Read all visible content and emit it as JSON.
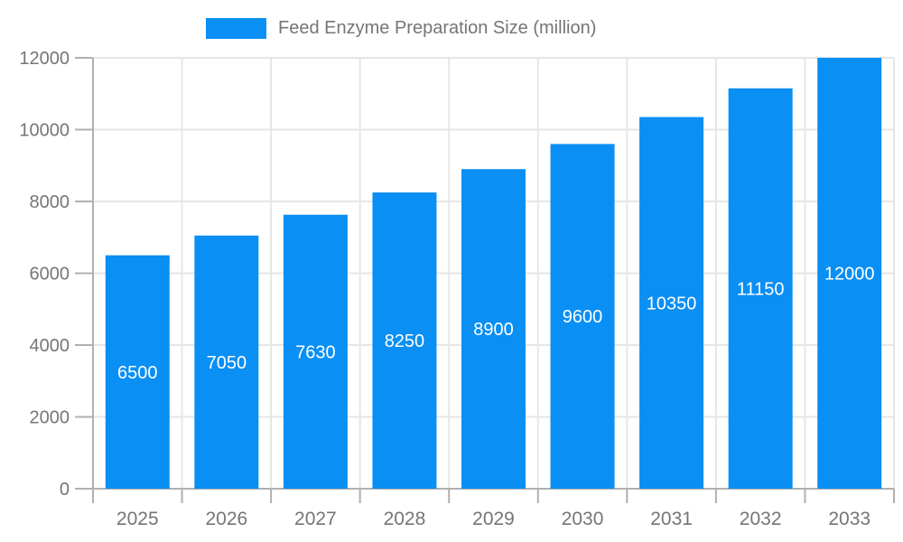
{
  "legend": {
    "swatch_color": "#0a8ff4"
  },
  "chart_data": {
    "type": "bar",
    "title": "Feed Enzyme Preparation Size (million)",
    "categories": [
      "2025",
      "2026",
      "2027",
      "2028",
      "2029",
      "2030",
      "2031",
      "2032",
      "2033"
    ],
    "values": [
      6500,
      7050,
      7630,
      8250,
      8900,
      9600,
      10350,
      11150,
      12000
    ],
    "xlabel": "",
    "ylabel": "",
    "ylim": [
      0,
      12000
    ],
    "ytick_step": 2000,
    "yticks": [
      0,
      2000,
      4000,
      6000,
      8000,
      10000,
      12000
    ],
    "grid": true,
    "legend_position": "top",
    "bar_color": "#0a8ff4",
    "value_label_color": "#ffffff",
    "axis_color": "#b0b0b0",
    "grid_color": "#e6e6e6",
    "text_color": "#757575"
  }
}
